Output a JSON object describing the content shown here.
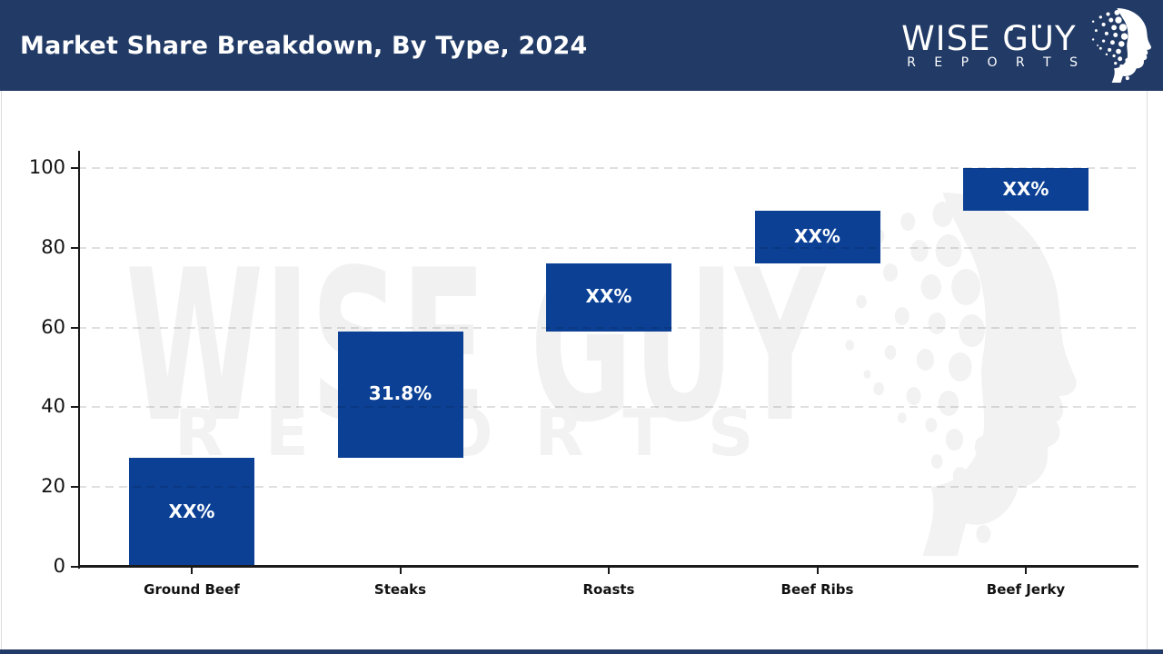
{
  "page": {
    "background": "#ffffff",
    "accent_navy": "#213a66",
    "bar_blue": "#0b4095"
  },
  "header": {
    "title": "Market Share Breakdown, By Type, 2024",
    "logo_line1": "WISE GUY",
    "logo_line2": "R E P O R T S"
  },
  "watermark": {
    "line1": "WISE GUY",
    "line2": "REPORTS"
  },
  "chart_data": {
    "type": "bar",
    "subtype": "waterfall",
    "title": "Market Share Breakdown, By Type, 2024",
    "categories": [
      "Ground Beef",
      "Steaks",
      "Roasts",
      "Beef Ribs",
      "Beef Jerky"
    ],
    "bars": [
      {
        "category": "Ground Beef",
        "start": 0,
        "end": 27.3,
        "label": "XX%"
      },
      {
        "category": "Steaks",
        "start": 27.3,
        "end": 59.1,
        "label": "31.8%"
      },
      {
        "category": "Roasts",
        "start": 59.1,
        "end": 76.1,
        "label": "XX%"
      },
      {
        "category": "Beef Ribs",
        "start": 76.1,
        "end": 89.2,
        "label": "XX%"
      },
      {
        "category": "Beef Jerky",
        "start": 89.2,
        "end": 100,
        "label": "XX%"
      }
    ],
    "xlabel": "",
    "ylabel": "",
    "ylim": [
      0,
      104
    ],
    "y_ticks": [
      0,
      20,
      40,
      60,
      80,
      100
    ],
    "grid": "dashed-horizontal",
    "legend": "none",
    "bar_color": "#0b4095",
    "value_label_color": "#ffffff"
  }
}
